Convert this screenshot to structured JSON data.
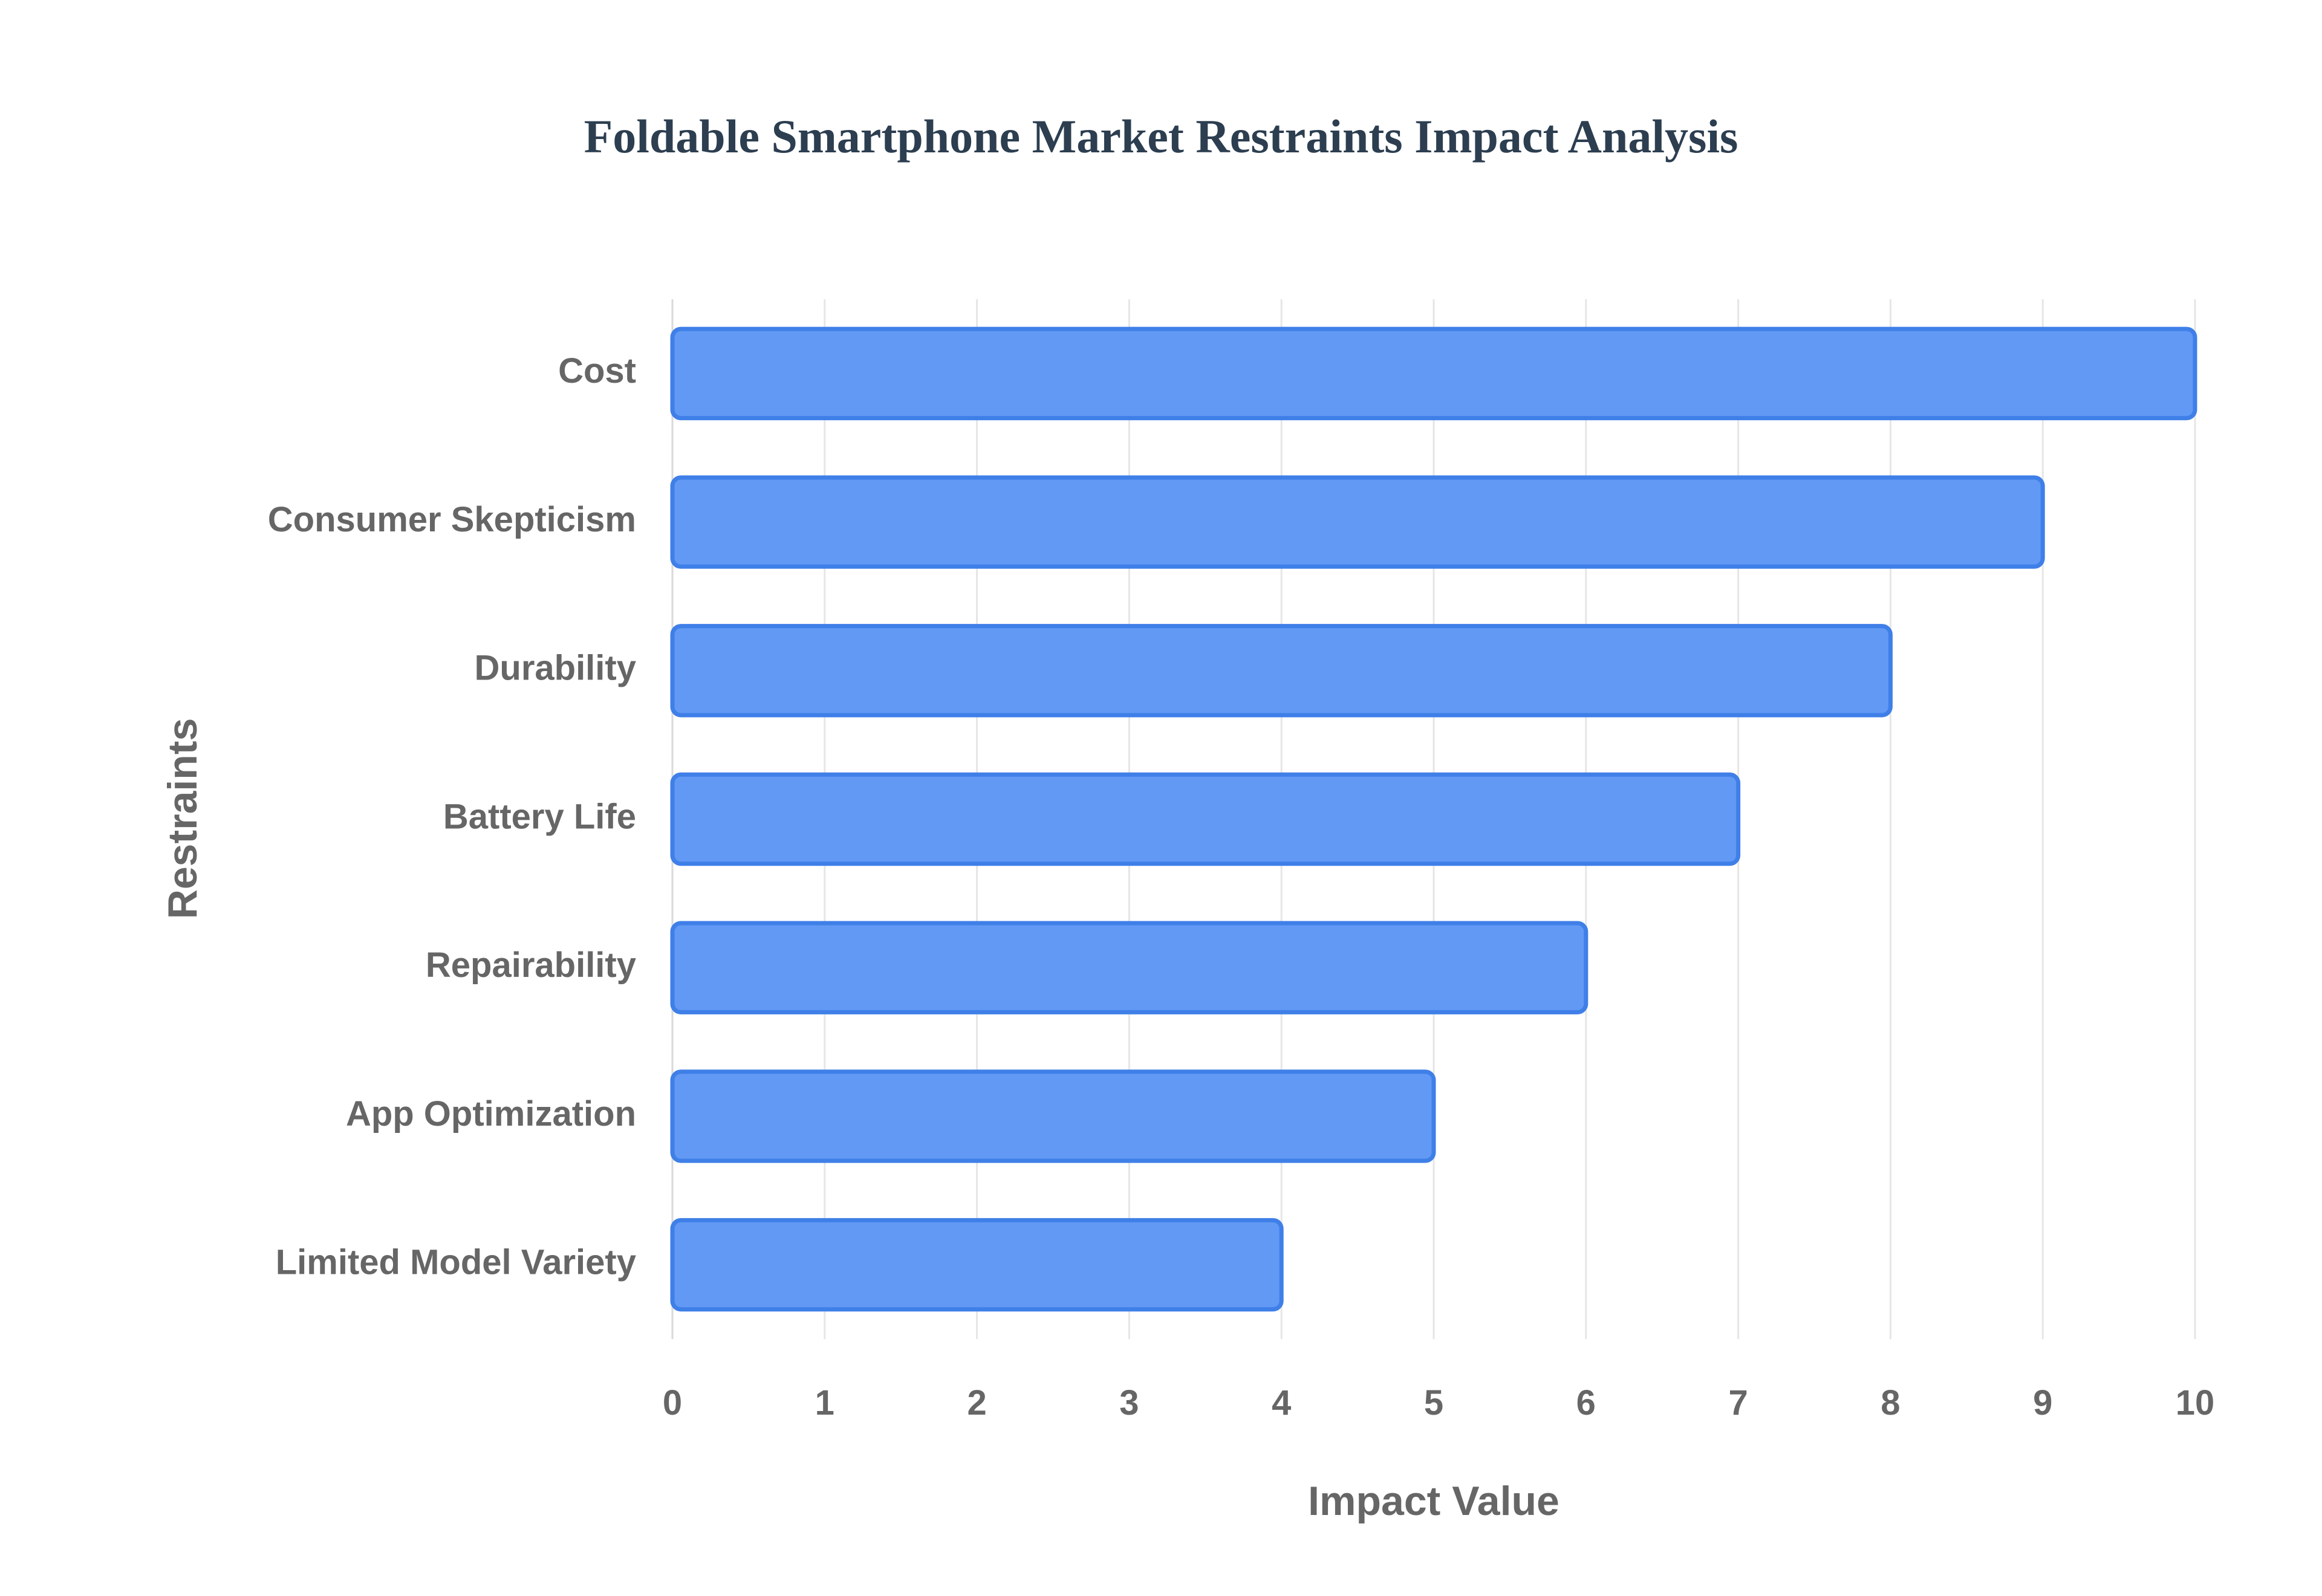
{
  "chart_data": {
    "type": "bar",
    "orientation": "horizontal",
    "title": "Foldable Smartphone Market Restraints Impact Analysis",
    "xlabel": "Impact Value",
    "ylabel": "Restraints",
    "categories": [
      "Cost",
      "Consumer Skepticism",
      "Durability",
      "Battery Life",
      "Repairability",
      "App Optimization",
      "Limited Model Variety"
    ],
    "values": [
      10,
      9,
      8,
      7,
      6,
      5,
      4
    ],
    "xlim": [
      0,
      10
    ],
    "xticks": [
      "0",
      "1",
      "2",
      "3",
      "4",
      "5",
      "6",
      "7",
      "8",
      "9",
      "10"
    ],
    "grid": true,
    "legend": "none",
    "colors": {
      "bar_fill": "#6199f4",
      "bar_stroke": "#3f7fe8",
      "gridline": "#e6e6e6",
      "text": "#666666",
      "title": "#2c3e50"
    }
  }
}
